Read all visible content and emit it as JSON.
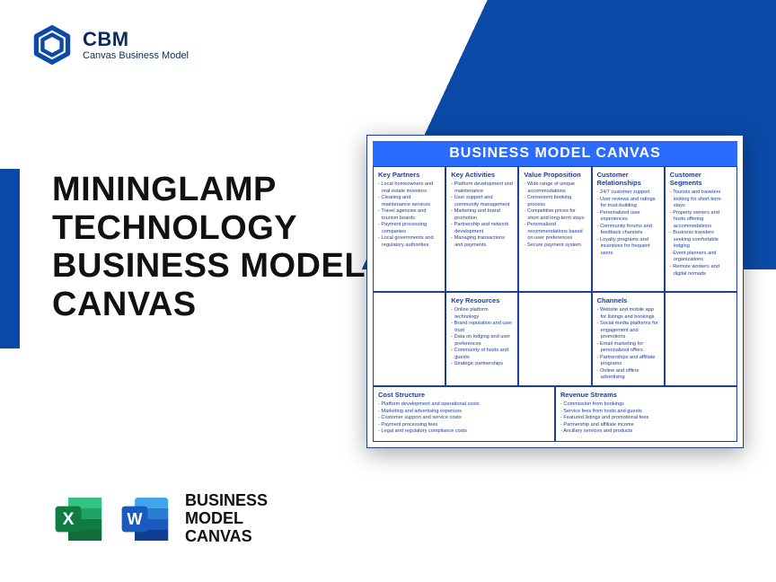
{
  "brand": {
    "abbr": "CBM",
    "name": "Canvas Business Model",
    "color": "#0b4aa8"
  },
  "title": {
    "l1": "MININGLAMP",
    "l2": "TECHNOLOGY",
    "l3": "BUSINESS MODEL",
    "l4": "CANVAS"
  },
  "bottom_label": {
    "l1": "BUSINESS",
    "l2": "MODEL",
    "l3": "CANVAS"
  },
  "icons": {
    "excel": {
      "bg": "#107c41",
      "fg": "#ffffff",
      "letter": "X"
    },
    "word": {
      "bg": "#185abd",
      "fg": "#ffffff",
      "letter": "W"
    }
  },
  "canvas": {
    "header": "BUSINESS MODEL CANVAS",
    "header_bg": "#2a6cff",
    "key_partners": {
      "label": "Key Partners",
      "items": [
        "Local homeowners and real estate investors",
        "Cleaning and maintenance services",
        "Travel agencies and tourism boards",
        "Payment processing companies",
        "Local governments and regulatory authorities"
      ]
    },
    "key_activities": {
      "label": "Key Activities",
      "items": [
        "Platform development and maintenance",
        "User support and community management",
        "Marketing and brand promotion",
        "Partnership and network development",
        "Managing transactions and payments"
      ]
    },
    "value_prop": {
      "label": "Value Proposition",
      "items": [
        "Wide range of unique accommodations",
        "Convenient booking process",
        "Competitive prices for short and long-term stays",
        "Personalized recommendations based on user preferences",
        "Secure payment system"
      ]
    },
    "cust_rel": {
      "label": "Customer Relationships",
      "items": [
        "24/7 customer support",
        "User reviews and ratings for trust-building",
        "Personalized user experiences",
        "Community forums and feedback channels",
        "Loyalty programs and incentives for frequent users"
      ]
    },
    "cust_seg": {
      "label": "Customer Segments",
      "items": [
        "Tourists and travelers looking for short-term stays",
        "Property owners and hosts offering accommodations",
        "Business travelers seeking comfortable lodging",
        "Event planners and organizations",
        "Remote workers and digital nomads"
      ]
    },
    "key_resources": {
      "label": "Key Resources",
      "items": [
        "Online platform technology",
        "Brand reputation and user trust",
        "Data on lodging and user preferences",
        "Community of hosts and guests",
        "Strategic partnerships"
      ]
    },
    "channels": {
      "label": "Channels",
      "items": [
        "Website and mobile app for listings and bookings",
        "Social media platforms for engagement and promotions",
        "Email marketing for personalized offers",
        "Partnerships and affiliate programs",
        "Online and offline advertising"
      ]
    },
    "cost": {
      "label": "Cost Structure",
      "items": [
        "Platform development and operational costs",
        "Marketing and advertising expenses",
        "Customer support and service costs",
        "Payment processing fees",
        "Legal and regulatory compliance costs"
      ]
    },
    "revenue": {
      "label": "Revenue Streams",
      "items": [
        "Commission from bookings",
        "Service fees from hosts and guests",
        "Featured listings and promotional fees",
        "Partnership and affiliate income",
        "Ancillary services and products"
      ]
    }
  }
}
